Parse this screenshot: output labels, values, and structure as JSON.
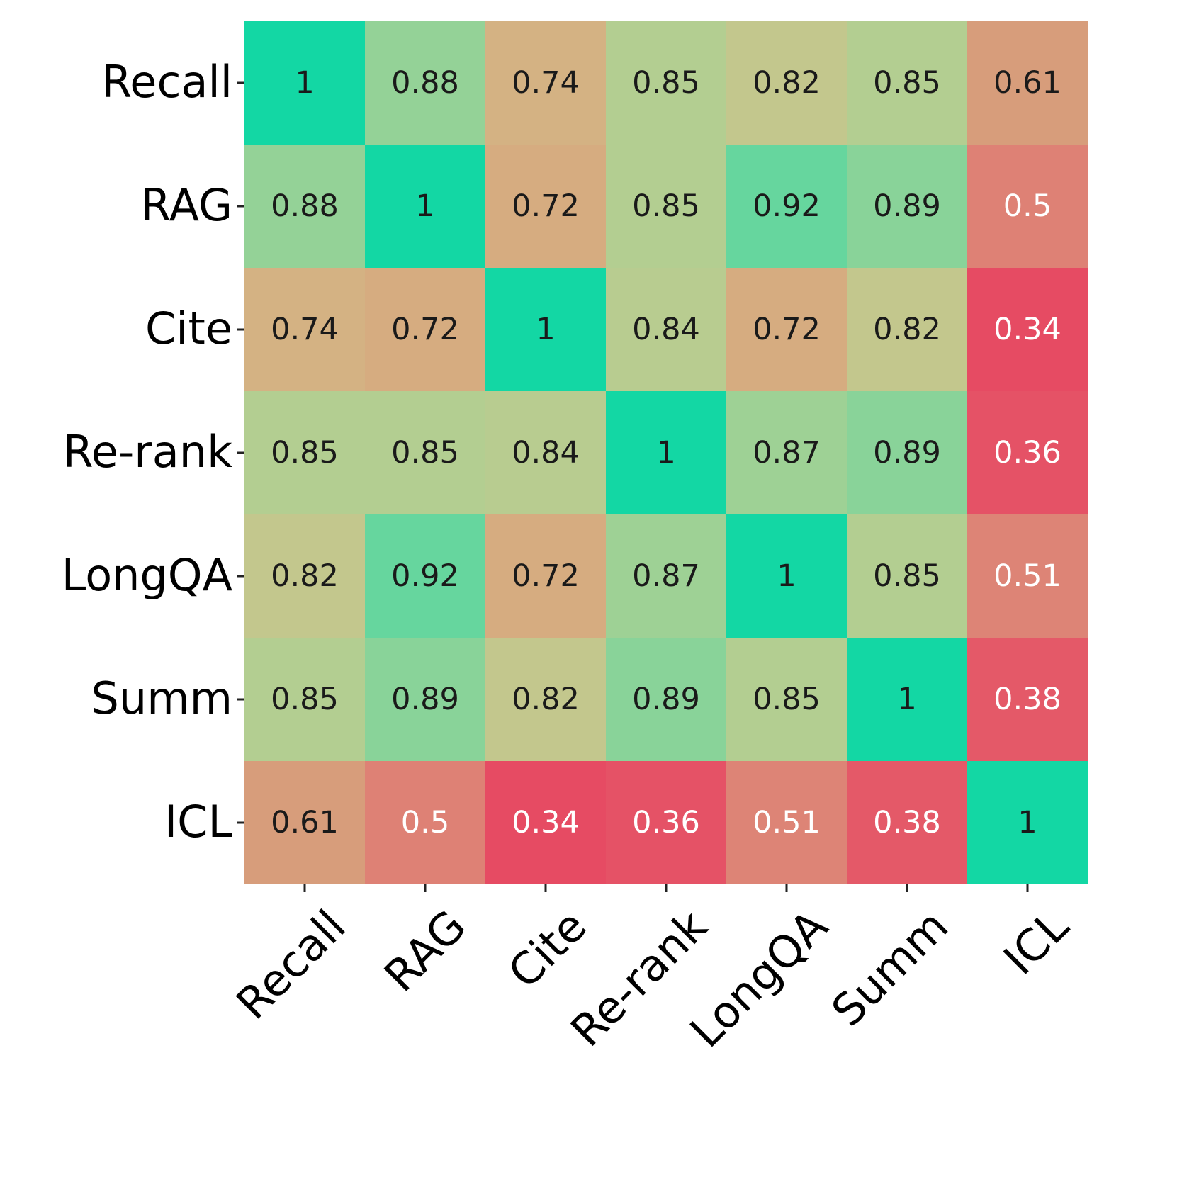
{
  "chart_data": {
    "type": "heatmap",
    "title": "",
    "labels": [
      "Recall",
      "RAG",
      "Cite",
      "Re-rank",
      "LongQA",
      "Summ",
      "ICL"
    ],
    "matrix": [
      [
        1,
        0.88,
        0.74,
        0.85,
        0.82,
        0.85,
        0.61
      ],
      [
        0.88,
        1,
        0.72,
        0.85,
        0.92,
        0.89,
        0.5
      ],
      [
        0.74,
        0.72,
        1,
        0.84,
        0.72,
        0.82,
        0.34
      ],
      [
        0.85,
        0.85,
        0.84,
        1,
        0.87,
        0.89,
        0.36
      ],
      [
        0.82,
        0.92,
        0.72,
        0.87,
        1,
        0.85,
        0.51
      ],
      [
        0.85,
        0.89,
        0.82,
        0.89,
        0.85,
        1,
        0.38
      ],
      [
        0.61,
        0.5,
        0.34,
        0.36,
        0.51,
        0.38,
        1
      ]
    ],
    "value_range": [
      0.3,
      1.0
    ],
    "grid": false,
    "legend": "none",
    "colormap": {
      "stops": [
        [
          0.3,
          "#e83e5f"
        ],
        [
          0.5,
          "#de8175"
        ],
        [
          0.6,
          "#d79c7a"
        ],
        [
          0.72,
          "#d6ac80"
        ],
        [
          0.8,
          "#cdc28a"
        ],
        [
          0.85,
          "#b3ce91"
        ],
        [
          0.89,
          "#89d399"
        ],
        [
          0.93,
          "#5ad7a0"
        ],
        [
          1.0,
          "#13d7a4"
        ]
      ],
      "text_dark": "#1a1a1a",
      "text_light": "#ffffff",
      "text_threshold": 0.55,
      "tick_color": "#222222"
    }
  }
}
